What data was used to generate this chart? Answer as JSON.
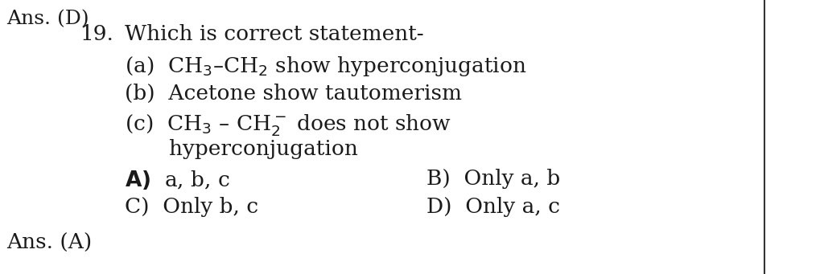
{
  "background_color": "#ffffff",
  "text_color": "#1a1a1a",
  "top_text": "Ans. (D)",
  "question_number": "19.",
  "question_text": "Which is correct statement-",
  "ans_text": "Ans. (A)",
  "font_size_main": 19,
  "line_color": "#333333",
  "watermark_color": "#e8d5a0"
}
